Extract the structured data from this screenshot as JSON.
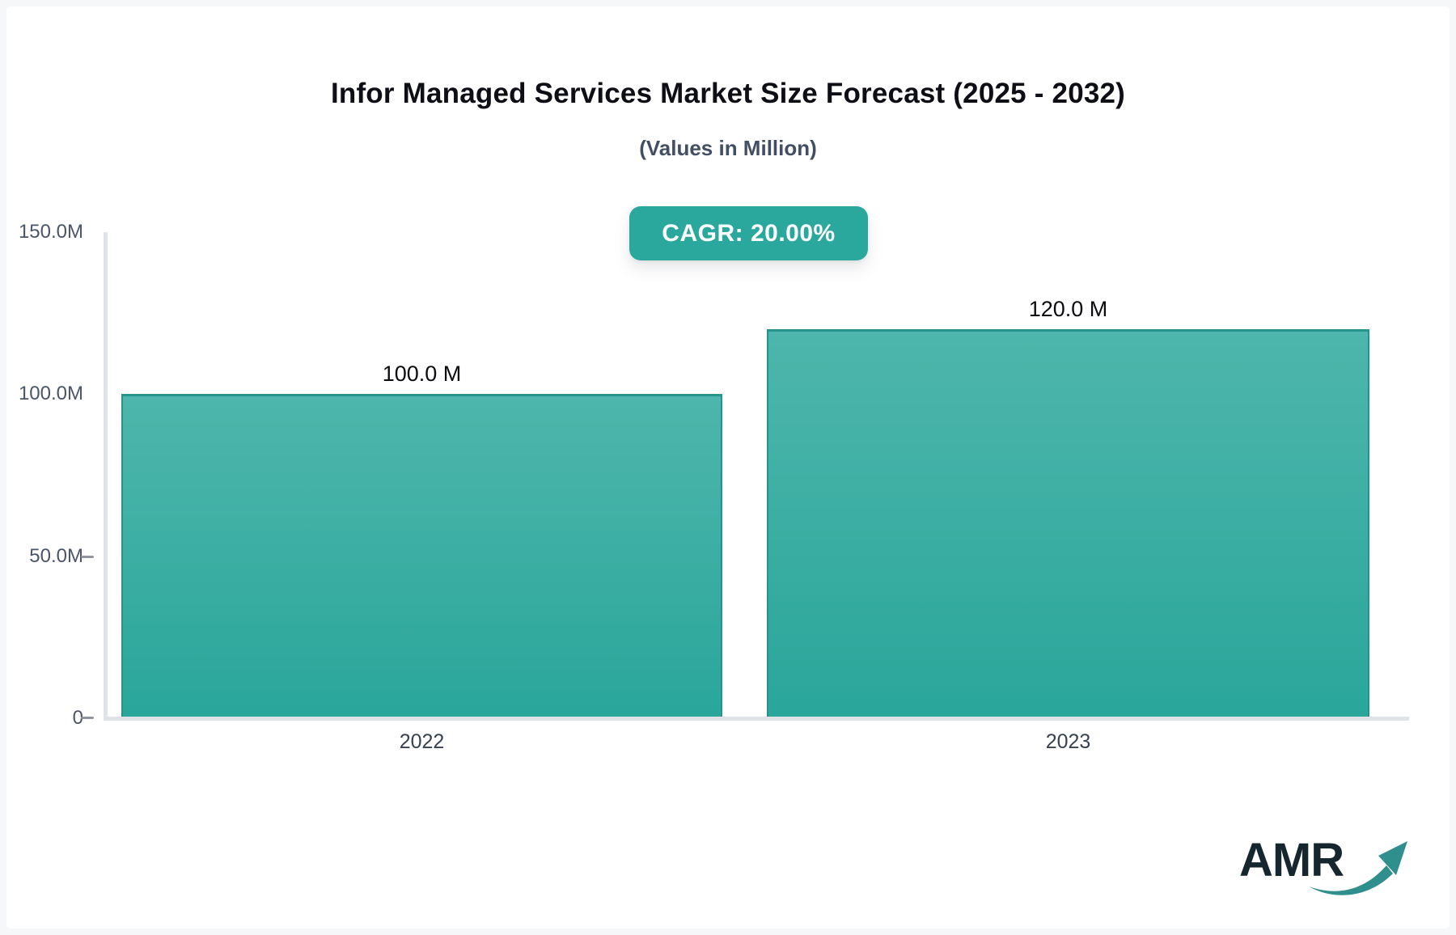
{
  "page": {
    "title": "Infor Managed Services Market Size Forecast (2025 - 2032)",
    "subtitle": "(Values in Million)",
    "cagr_badge_label": "CAGR: 20.00%",
    "logo_text": "AMR"
  },
  "colors": {
    "accent_teal": "#2AA89D",
    "bar_gradient_top": "#4EB6AC",
    "bar_gradient_bottom": "#2AA69A",
    "bar_border": "#25948D",
    "axis_line": "#E0E3E8",
    "title_text": "#0E0E16",
    "subtitle_text": "#414E63",
    "tick_text": "#4A5568",
    "logo_dark": "#16262E",
    "logo_arrow_teal": "#2E8F8C"
  },
  "chart_data": {
    "type": "bar",
    "title": "Infor Managed Services Market Size Forecast (2025 - 2032)",
    "subtitle": "(Values in Million)",
    "unit": "Million",
    "cagr": "20.00%",
    "categories": [
      "2022",
      "2023"
    ],
    "values": [
      100.0,
      120.0
    ],
    "value_labels": [
      "100.0 M",
      "120.0 M"
    ],
    "xlabel": "",
    "ylabel": "",
    "ylim": [
      0,
      150
    ],
    "ytick_labels": [
      "150.0M",
      "100.0M",
      "50.0M",
      "0"
    ],
    "ytick_values": [
      150,
      100,
      50,
      0
    ],
    "grid": false,
    "legend": false
  }
}
